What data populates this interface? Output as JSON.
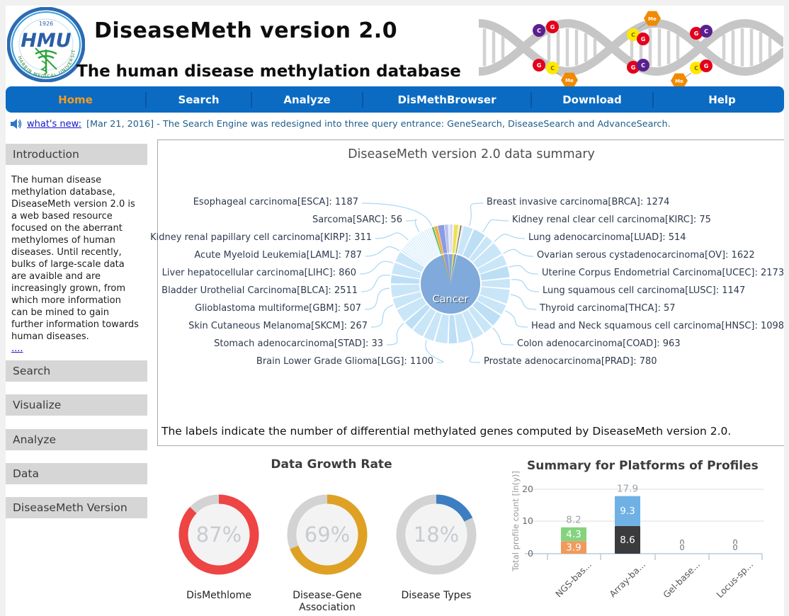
{
  "header": {
    "title": "DiseaseMeth version 2.0",
    "subtitle": "The human disease methylation database",
    "logo": {
      "abbr": "HMU",
      "year": "1926",
      "org": "HARBIN MEDICAL UNIVERSITY"
    },
    "dna_labels": {
      "c": "C",
      "g": "G",
      "me": "Me"
    }
  },
  "nav": {
    "items": [
      {
        "label": "Home",
        "active": true
      },
      {
        "label": "Search",
        "active": false
      },
      {
        "label": "Analyze",
        "active": false
      },
      {
        "label": "DisMethBrowser",
        "active": false
      },
      {
        "label": "Download",
        "active": false
      },
      {
        "label": "Help",
        "active": false
      }
    ]
  },
  "news": {
    "link_label": "what's new:",
    "message": "[Mar 21, 2016] - The Search Engine was redesigned into three query entrance: GeneSearch, DiseaseSearch and AdvanceSearch."
  },
  "sidebar": {
    "intro": {
      "label": "Introduction",
      "text": "The human disease methylation database, DiseaseMeth version 2.0 is a web based resource focused on the aberrant methylomes of human diseases. Until recently, bulks of large-scale data are avaible and are increasingly grown, from which more information can be mined to gain further information towards human diseases.",
      "more": "...."
    },
    "items": [
      {
        "label": "Search"
      },
      {
        "label": "Visualize"
      },
      {
        "label": "Analyze"
      },
      {
        "label": "Data"
      },
      {
        "label": "DiseaseMeth Version"
      }
    ]
  },
  "chart_data": [
    {
      "type": "pie",
      "variant": "sunburst",
      "title": "DiseaseMeth version 2.0 data summary",
      "center_label": "Cancer",
      "note": "The labels indicate the number of differential methylated genes computed by DiseaseMeth version 2.0.",
      "items": [
        {
          "disease": "Esophageal carcinoma",
          "code": "ESCA",
          "genes": 1187,
          "side": "left"
        },
        {
          "disease": "Sarcoma",
          "code": "SARC",
          "genes": 56,
          "side": "left"
        },
        {
          "disease": "Kidney renal papillary cell carcinoma",
          "code": "KIRP",
          "genes": 311,
          "side": "left"
        },
        {
          "disease": "Acute Myeloid Leukemia",
          "code": "LAML",
          "genes": 787,
          "side": "left"
        },
        {
          "disease": "Liver hepatocellular carcinoma",
          "code": "LIHC",
          "genes": 860,
          "side": "left"
        },
        {
          "disease": "Bladder Urothelial Carcinoma",
          "code": "BLCA",
          "genes": 2511,
          "side": "left"
        },
        {
          "disease": "Glioblastoma multiforme",
          "code": "GBM",
          "genes": 507,
          "side": "left"
        },
        {
          "disease": "Skin Cutaneous Melanoma",
          "code": "SKCM",
          "genes": 267,
          "side": "left"
        },
        {
          "disease": "Stomach adenocarcinoma",
          "code": "STAD",
          "genes": 33,
          "side": "left"
        },
        {
          "disease": "Brain Lower Grade Glioma",
          "code": "LGG",
          "genes": 1100,
          "side": "left"
        },
        {
          "disease": "Breast invasive carcinoma",
          "code": "BRCA",
          "genes": 1274,
          "side": "right"
        },
        {
          "disease": "Kidney renal clear cell carcinoma",
          "code": "KIRC",
          "genes": 75,
          "side": "right"
        },
        {
          "disease": "Lung adenocarcinoma",
          "code": "LUAD",
          "genes": 514,
          "side": "right"
        },
        {
          "disease": "Ovarian serous cystadenocarcinoma",
          "code": "OV",
          "genes": 1622,
          "side": "right"
        },
        {
          "disease": "Uterine Corpus Endometrial Carcinoma",
          "code": "UCEC",
          "genes": 2173,
          "side": "right"
        },
        {
          "disease": "Lung squamous cell carcinoma",
          "code": "LUSC",
          "genes": 1147,
          "side": "right"
        },
        {
          "disease": "Thyroid carcinoma",
          "code": "THCA",
          "genes": 57,
          "side": "right"
        },
        {
          "disease": "Head and Neck squamous cell carcinoma",
          "code": "HNSC",
          "genes": 1098,
          "side": "right"
        },
        {
          "disease": "Colon adenocarcinoma",
          "code": "COAD",
          "genes": 963,
          "side": "right"
        },
        {
          "disease": "Prostate adenocarcinoma",
          "code": "PRAD",
          "genes": 780,
          "side": "right"
        }
      ],
      "colors": {
        "center": "#7faadb",
        "ring": "#c9e6f8",
        "leader_line": "#a9d7f3"
      }
    },
    {
      "type": "donut",
      "title": "Data Growth Rate",
      "items": [
        {
          "label": "DisMethlome",
          "percent": 87,
          "color": "#ee4444"
        },
        {
          "label": "Disease-Gene Association",
          "percent": 69,
          "color": "#dfa124"
        },
        {
          "label": "Disease Types",
          "percent": 18,
          "color": "#3c7ec1"
        }
      ],
      "track_color": "#d3d3d3",
      "inner_color": "#f3f3f3",
      "value_color": "#c7cbd2"
    },
    {
      "type": "bar",
      "variant": "stacked",
      "title": "Summary for Platforms of Profiles",
      "ylabel": "Total profile count [ln(y)]",
      "yticks": [
        "0",
        "10",
        "20"
      ],
      "ylim": [
        0,
        20
      ],
      "grid": true,
      "categories": [
        "NGS-bas...",
        "Array-ba...",
        "Gel-base...",
        "Locus-sp..."
      ],
      "bars": [
        {
          "category": "NGS-bas...",
          "total_label": "8.2",
          "segments": [
            {
              "value": 3.9,
              "label": "3.9",
              "color": "#f09a5c"
            },
            {
              "value": 4.3,
              "label": "4.3",
              "color": "#85d37f"
            }
          ]
        },
        {
          "category": "Array-ba...",
          "total_label": "17.9",
          "segments": [
            {
              "value": 8.6,
              "label": "8.6",
              "color": "#3b3b3e"
            },
            {
              "value": 9.3,
              "label": "9.3",
              "color": "#6fb1e4"
            }
          ]
        },
        {
          "category": "Gel-base...",
          "total_label": "0",
          "segments": []
        },
        {
          "category": "Locus-sp...",
          "total_label": "0",
          "segments": []
        }
      ]
    }
  ]
}
